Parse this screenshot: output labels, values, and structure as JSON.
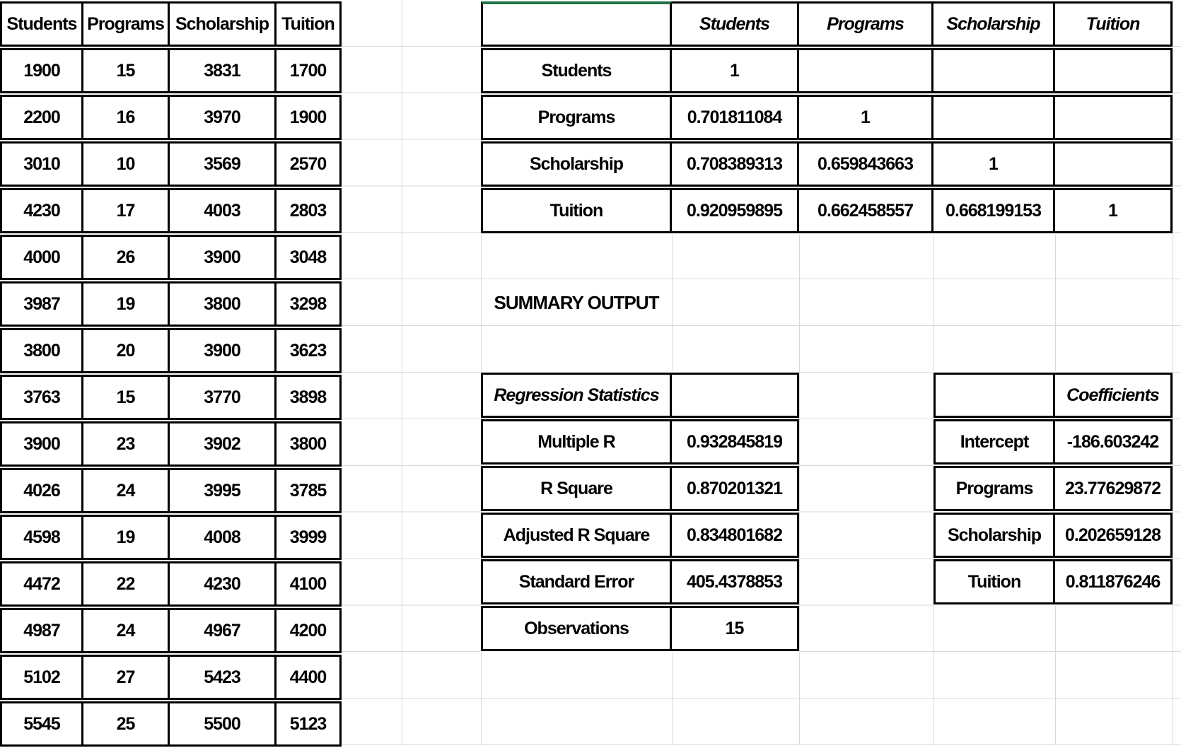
{
  "colors": {
    "selection_green": "#217346",
    "gridline_gray": "#d9d9d9",
    "cell_border_black": "#000000",
    "background": "#ffffff"
  },
  "data_table": {
    "headers": [
      "Students",
      "Programs",
      "Scholarship",
      "Tuition"
    ],
    "rows": [
      [
        "1900",
        "15",
        "3831",
        "1700"
      ],
      [
        "2200",
        "16",
        "3970",
        "1900"
      ],
      [
        "3010",
        "10",
        "3569",
        "2570"
      ],
      [
        "4230",
        "17",
        "4003",
        "2803"
      ],
      [
        "4000",
        "26",
        "3900",
        "3048"
      ],
      [
        "3987",
        "19",
        "3800",
        "3298"
      ],
      [
        "3800",
        "20",
        "3900",
        "3623"
      ],
      [
        "3763",
        "15",
        "3770",
        "3898"
      ],
      [
        "3900",
        "23",
        "3902",
        "3800"
      ],
      [
        "4026",
        "24",
        "3995",
        "3785"
      ],
      [
        "4598",
        "19",
        "4008",
        "3999"
      ],
      [
        "4472",
        "22",
        "4230",
        "4100"
      ],
      [
        "4987",
        "24",
        "4967",
        "4200"
      ],
      [
        "5102",
        "27",
        "5423",
        "4400"
      ],
      [
        "5545",
        "25",
        "5500",
        "5123"
      ]
    ]
  },
  "correlation_matrix": {
    "col_headers": [
      "Students",
      "Programs",
      "Scholarship",
      "Tuition"
    ],
    "rows": [
      {
        "label": "Students",
        "values": [
          "1",
          "",
          "",
          ""
        ]
      },
      {
        "label": "Programs",
        "values": [
          "0.701811084",
          "1",
          "",
          ""
        ]
      },
      {
        "label": "Scholarship",
        "values": [
          "0.708389313",
          "0.659843663",
          "1",
          ""
        ]
      },
      {
        "label": "Tuition",
        "values": [
          "0.920959895",
          "0.662458557",
          "0.668199153",
          "1"
        ]
      }
    ]
  },
  "summary_output_label": "SUMMARY OUTPUT",
  "regression_statistics": {
    "title": "Regression Statistics",
    "rows": [
      [
        "Multiple R",
        "0.932845819"
      ],
      [
        "R Square",
        "0.870201321"
      ],
      [
        "Adjusted R Square",
        "0.834801682"
      ],
      [
        "Standard Error",
        "405.4378853"
      ],
      [
        "Observations",
        "15"
      ]
    ]
  },
  "coefficients_table": {
    "title": "Coefficients",
    "rows": [
      [
        "Intercept",
        "-186.603242"
      ],
      [
        "Programs",
        "23.77629872"
      ],
      [
        "Scholarship",
        "0.202659128"
      ],
      [
        "Tuition",
        "0.811876246"
      ]
    ]
  }
}
